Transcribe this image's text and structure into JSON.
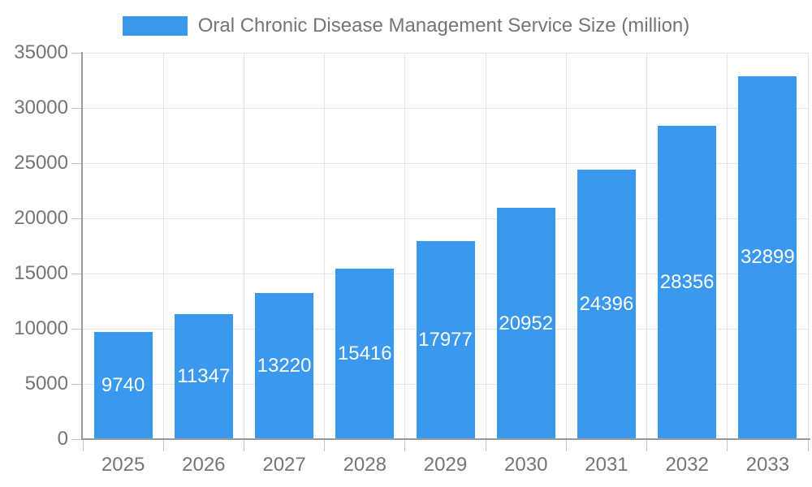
{
  "legend": {
    "label": "Oral Chronic Disease Management Service Size (million)"
  },
  "chart_data": {
    "type": "bar",
    "title": "",
    "legend": "Oral Chronic Disease Management Service Size (million)",
    "categories": [
      "2025",
      "2026",
      "2027",
      "2028",
      "2029",
      "2030",
      "2031",
      "2032",
      "2033"
    ],
    "values": [
      9740,
      11347,
      13220,
      15416,
      17977,
      20952,
      24396,
      28356,
      32899
    ],
    "xlabel": "",
    "ylabel": "",
    "ylim": [
      0,
      35000
    ],
    "yticks": [
      0,
      5000,
      10000,
      15000,
      20000,
      25000,
      30000,
      35000
    ],
    "grid": true,
    "legend_position": "top",
    "bar_color": "#3a99ee",
    "value_label_color": "#ffffff",
    "axis_text_color": "#757575",
    "gridline_color": "#e5e5e5",
    "axis_line_color": "#9a9a9a"
  }
}
